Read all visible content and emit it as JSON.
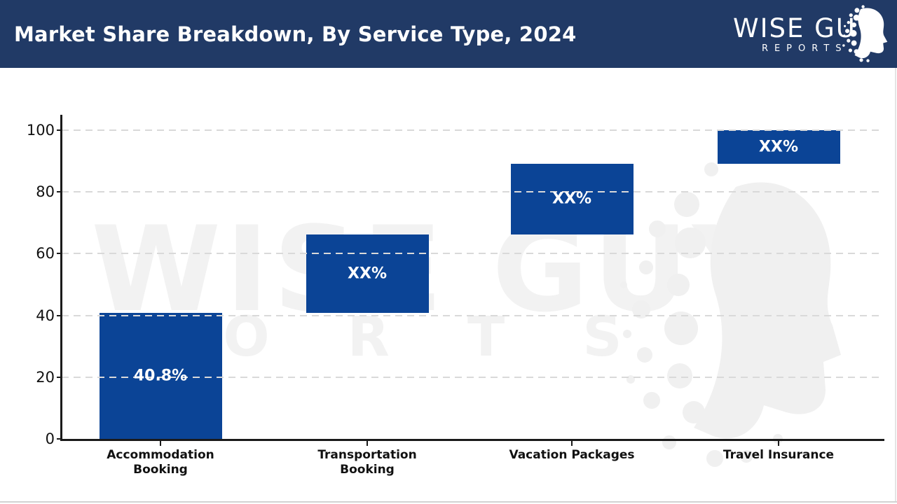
{
  "header": {
    "title": "Market Share Breakdown, By Service Type, 2024",
    "logo": {
      "line1": "WISE GUY",
      "line2": "REPORTS"
    }
  },
  "watermark": {
    "line1": "WISE GUY",
    "line2": "P O R T S"
  },
  "colors": {
    "header_bg": "#213a66",
    "bar": "#0b4496",
    "bar_label": "#ffffff",
    "axis": "#1a1a1a",
    "grid": "#d9d9d9",
    "watermark": "#f2f2f2"
  },
  "chart_data": {
    "type": "bar",
    "subtype": "waterfall",
    "title": "Market Share Breakdown, By Service Type, 2024",
    "categories": [
      "Accommodation Booking",
      "Transportation Booking",
      "Vacation Packages",
      "Travel Insurance"
    ],
    "bars": [
      {
        "category": "Accommodation Booking",
        "axis_label": "Accommodation\nBooking",
        "start": 0,
        "end": 40.8,
        "value": 40.8,
        "label": "40.8%"
      },
      {
        "category": "Transportation Booking",
        "axis_label": "Transportation\nBooking",
        "start": 40.8,
        "end": 66.2,
        "value_est": 25.4,
        "label": "XX%"
      },
      {
        "category": "Vacation Packages",
        "axis_label": "Vacation Packages",
        "start": 66.2,
        "end": 89.2,
        "value_est": 23.0,
        "label": "XX%"
      },
      {
        "category": "Travel Insurance",
        "axis_label": "Travel Insurance",
        "start": 89.2,
        "end": 100,
        "value_est": 10.8,
        "label": "XX%"
      }
    ],
    "xlabel": "",
    "ylabel": "",
    "yticks": [
      0,
      20,
      40,
      60,
      80,
      100
    ],
    "ylim": [
      0,
      105
    ],
    "grid": "horizontal dashed, drawn over bars",
    "legend": "none",
    "bar_color": "#0b4496"
  }
}
